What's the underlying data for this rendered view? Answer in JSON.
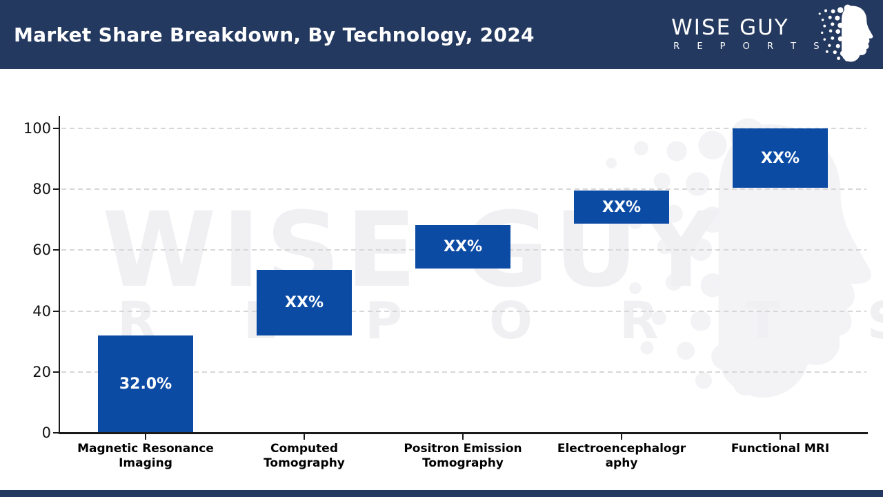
{
  "header": {
    "title": "Market Share Breakdown, By Technology, 2024",
    "logo": {
      "wordmark": "WISE GUY",
      "subtext": "R E P O R T S"
    }
  },
  "watermark": {
    "wordmark": "WISE GUY",
    "subtext": "R E P O R T S"
  },
  "colors": {
    "header_bg": "#24395f",
    "footer_bg": "#24395f",
    "bar_fill": "#0c4ba3",
    "bar_label": "#ffffff",
    "gridline": "#d7d7d7",
    "axis": "#1a1a1a",
    "tick_text": "#111111",
    "watermark": "#f0f0f3"
  },
  "chart_data": {
    "type": "bar",
    "subtype": "waterfall",
    "title": "Market Share Breakdown, By Technology, 2024",
    "categories": [
      "Magnetic Resonance Imaging",
      "Computed Tomography",
      "Positron Emission Tomography",
      "Electroencephalography",
      "Functional MRI"
    ],
    "category_lines": [
      [
        "Magnetic Resonance",
        "Imaging"
      ],
      [
        "Computed",
        "Tomography"
      ],
      [
        "Positron Emission",
        "Tomography"
      ],
      [
        "Electroencephalogr",
        "aphy"
      ],
      [
        "Functional MRI"
      ]
    ],
    "segments": [
      {
        "category": "Magnetic Resonance Imaging",
        "start": 0,
        "end": 32,
        "label": "32.0%"
      },
      {
        "category": "Computed Tomography",
        "start": 32,
        "end": 53.5,
        "label": "XX%"
      },
      {
        "category": "Positron Emission Tomography",
        "start": 54,
        "end": 68.3,
        "label": "XX%"
      },
      {
        "category": "Electroencephalography",
        "start": 68.6,
        "end": 79.6,
        "label": "XX%"
      },
      {
        "category": "Functional MRI",
        "start": 80.5,
        "end": 100,
        "label": "XX%"
      }
    ],
    "yticks": [
      0,
      20,
      40,
      60,
      80,
      100
    ],
    "ylim": [
      0,
      104
    ],
    "xlabel": "",
    "ylabel": "",
    "legend": null,
    "grid": "horizontal-dashed"
  }
}
